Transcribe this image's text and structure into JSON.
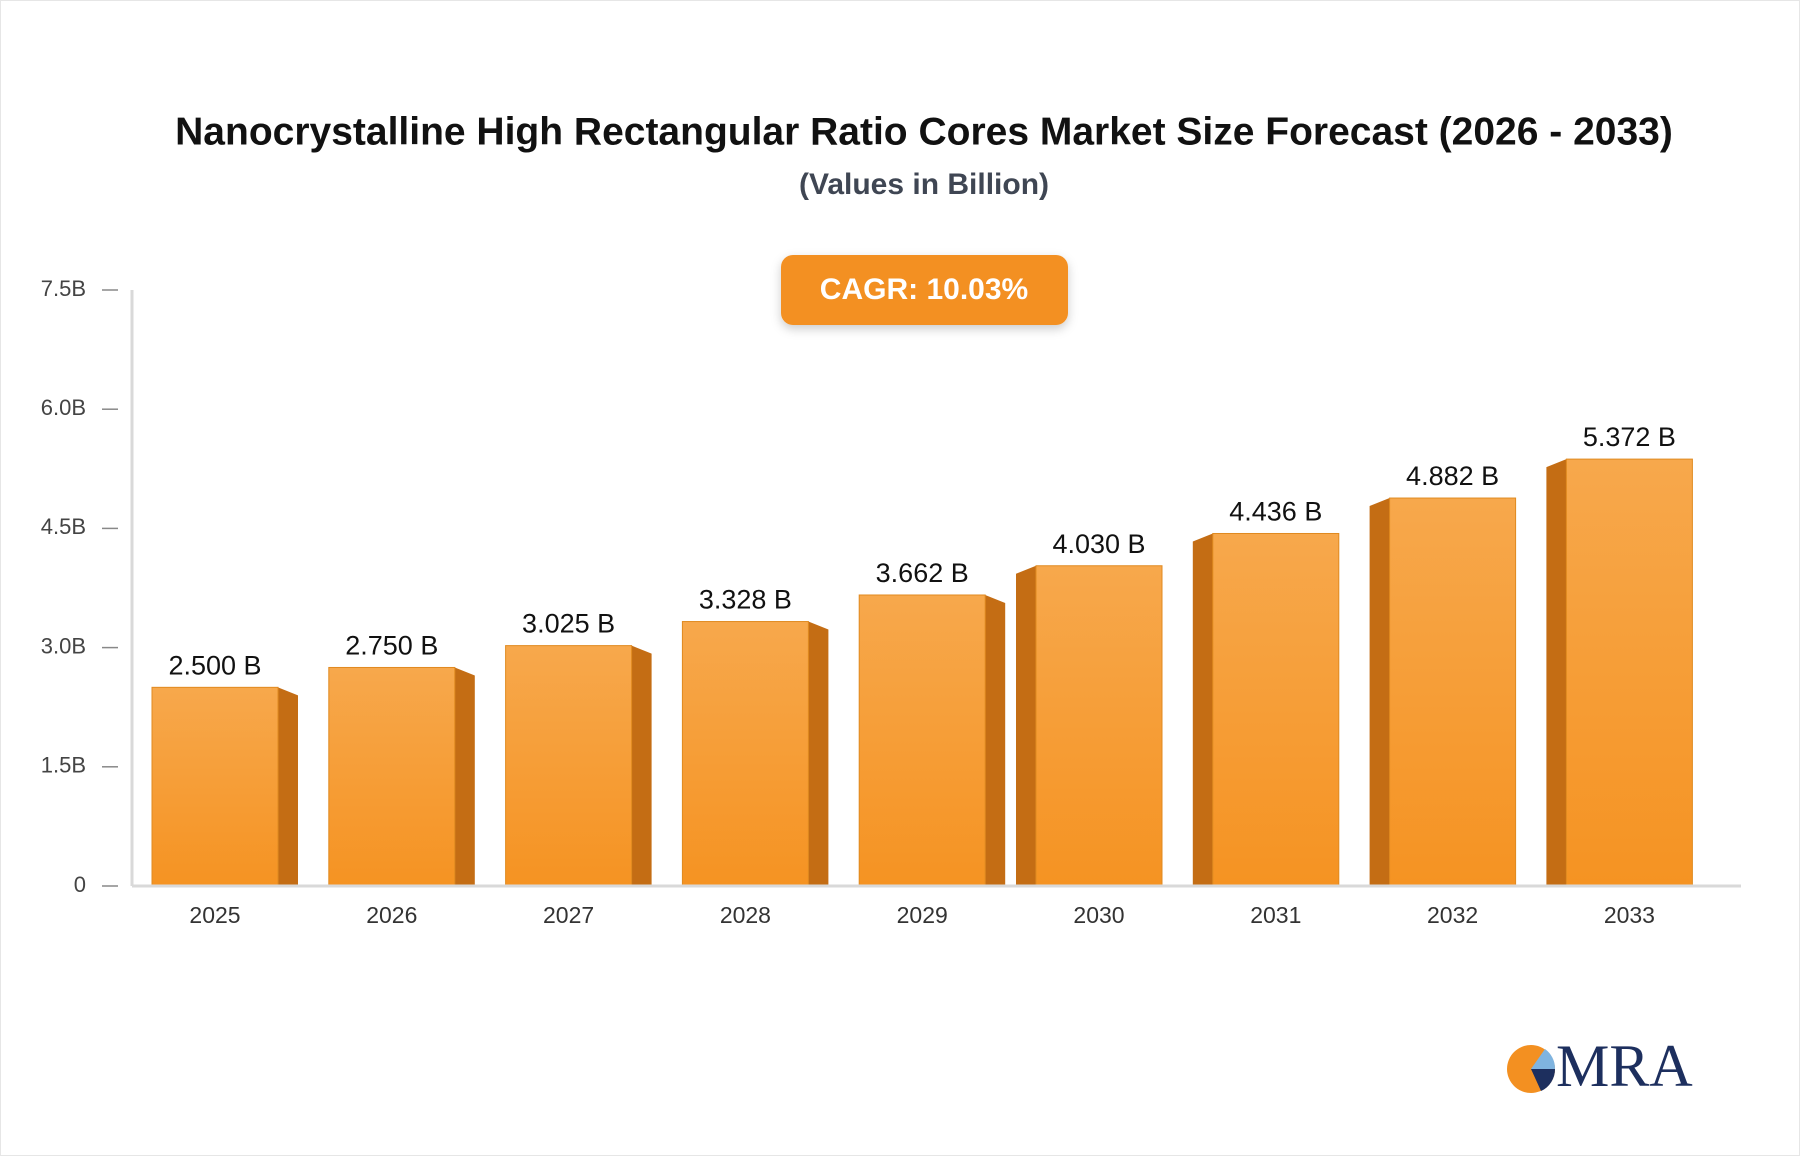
{
  "chart_data": {
    "type": "bar",
    "title": "Nanocrystalline High Rectangular Ratio Cores Market Size Forecast (2026 - 2033)",
    "subtitle": "(Values in Billion)",
    "annotation": "CAGR: 10.03%",
    "categories": [
      "2025",
      "2026",
      "2027",
      "2028",
      "2029",
      "2030",
      "2031",
      "2032",
      "2033"
    ],
    "values": [
      2.5,
      2.75,
      3.025,
      3.328,
      3.662,
      4.03,
      4.436,
      4.882,
      5.372
    ],
    "value_labels": [
      "2.500 B",
      "2.750 B",
      "3.025 B",
      "3.328 B",
      "3.662 B",
      "4.030 B",
      "4.436 B",
      "4.882 B",
      "5.372 B"
    ],
    "color": "#f7a040",
    "ylim": [
      0,
      7.5
    ],
    "yticks": [
      0,
      {
        "value": 1.5,
        "label": "1.5B"
      },
      {
        "value": 3,
        "label": "3.0B"
      },
      {
        "value": 4.5,
        "label": "4.5B"
      },
      {
        "value": 6,
        "label": "6.0B"
      },
      {
        "value": 7.5,
        "label": "7.5B"
      }
    ],
    "grid": false
  },
  "logo": {
    "text": "MRA"
  }
}
